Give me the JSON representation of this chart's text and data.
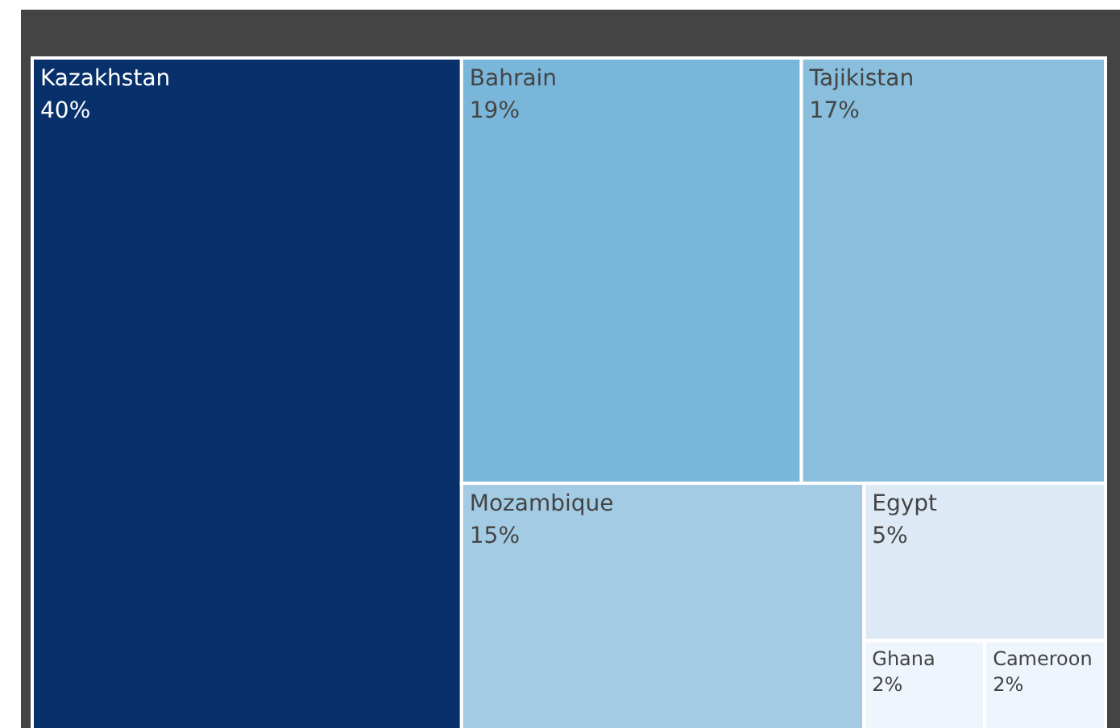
{
  "chart_data": {
    "type": "other",
    "categories": [
      "Kazakhstan",
      "Bahrain",
      "Tajikistan",
      "Mozambique",
      "Egypt",
      "Ghana",
      "Cameroon"
    ],
    "values": [
      40,
      19,
      17,
      15,
      5,
      2,
      2
    ],
    "value_labels": [
      "40%",
      "19%",
      "17%",
      "15%",
      "5%",
      "2%",
      "2%"
    ],
    "colors": [
      "#08306b",
      "#7ab6d9",
      "#89bedc",
      "#a3cbe3",
      "#dde9f5",
      "#eff5fc",
      "#eef5fc"
    ]
  }
}
